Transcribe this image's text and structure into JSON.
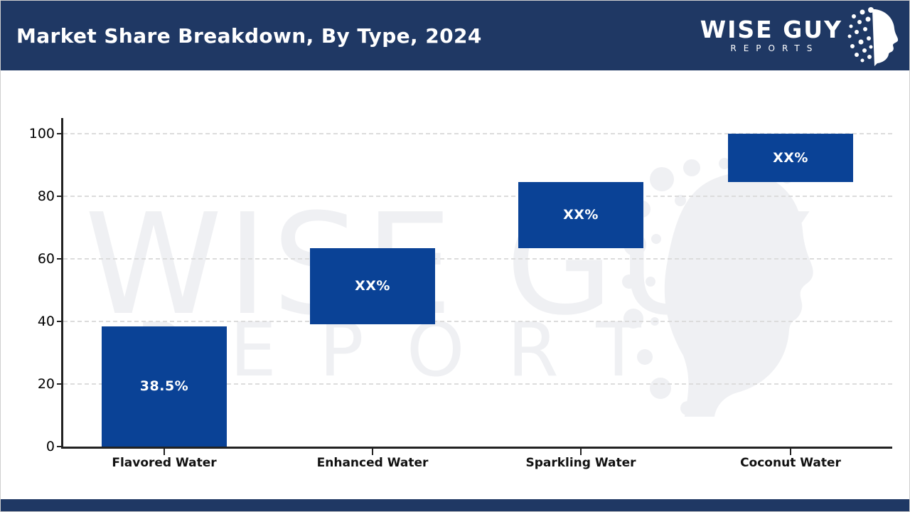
{
  "header": {
    "title": "Market Share Breakdown, By Type, 2024",
    "logo": {
      "line1": "WISE GUY",
      "line2": "REPORTS"
    }
  },
  "watermark": {
    "line1": "WISE GUY",
    "line2": "REPORTS"
  },
  "chart_data": {
    "type": "bar",
    "subtype": "waterfall-stacked-market-share",
    "title": "Market Share Breakdown, By Type, 2024",
    "categories": [
      "Flavored Water",
      "Enhanced Water",
      "Sparkling Water",
      "Coconut Water"
    ],
    "bars": [
      {
        "category": "Flavored Water",
        "label": "38.5%",
        "start": 0,
        "end": 38.5
      },
      {
        "category": "Enhanced Water",
        "label": "XX%",
        "start": 39,
        "end": 63.5
      },
      {
        "category": "Sparkling Water",
        "label": "XX%",
        "start": 63.5,
        "end": 84.5
      },
      {
        "category": "Coconut Water",
        "label": "XX%",
        "start": 84.5,
        "end": 100
      }
    ],
    "yticks": [
      0,
      20,
      40,
      60,
      80,
      100
    ],
    "ylim": [
      0,
      104
    ],
    "xlabel": "",
    "ylabel": "",
    "grid": "horizontal-dashed",
    "legend": "none"
  },
  "colors": {
    "header_bg": "#1f3864",
    "footer_bg": "#1f3864",
    "bar": "#0a4296",
    "bar_label": "#ffffff",
    "grid": "#dcdcdc",
    "axis": "#222222",
    "watermark": "#eff0f3",
    "background": "#ffffff"
  }
}
